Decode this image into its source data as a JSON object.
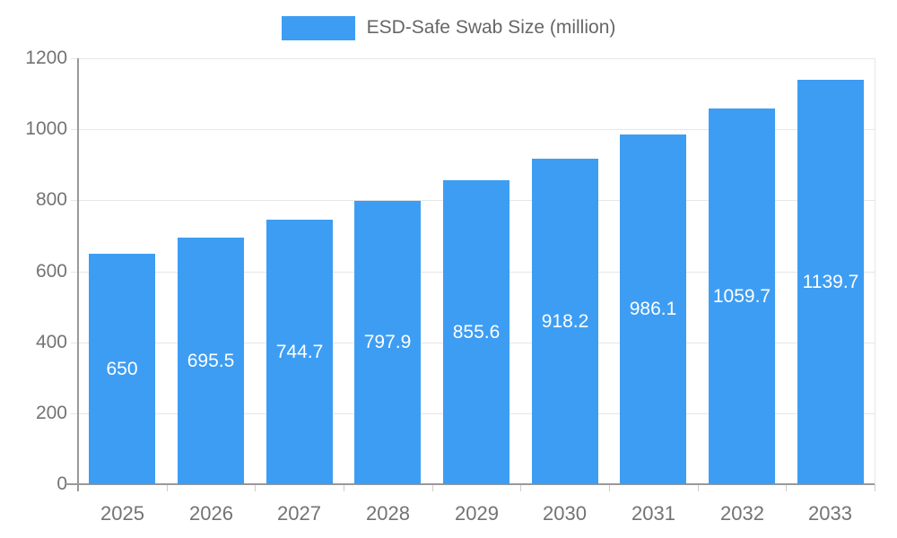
{
  "chart_data": {
    "type": "bar",
    "title": "ESD-Safe Swab Size (million)",
    "legend_position": "top",
    "categories": [
      "2025",
      "2026",
      "2027",
      "2028",
      "2029",
      "2030",
      "2031",
      "2032",
      "2033"
    ],
    "values": [
      650,
      695.5,
      744.7,
      797.9,
      855.6,
      918.2,
      986.1,
      1059.7,
      1139.7
    ],
    "data_labels": [
      "650",
      "695.5",
      "744.7",
      "797.9",
      "855.6",
      "918.2",
      "986.1",
      "1059.7",
      "1139.7"
    ],
    "xlabel": "",
    "ylabel": "",
    "ylim": [
      0,
      1200
    ],
    "yticks": [
      0,
      200,
      400,
      600,
      800,
      1000,
      1200
    ],
    "grid": true,
    "colors": {
      "bar": "#3d9df3",
      "bar_label": "#ffffff",
      "axis_line": "#999999",
      "grid_line": "#e6e6e6",
      "boundary_tick": "#cccccc",
      "tick_text": "#737373",
      "legend_text": "#666666",
      "background": "#ffffff"
    }
  }
}
